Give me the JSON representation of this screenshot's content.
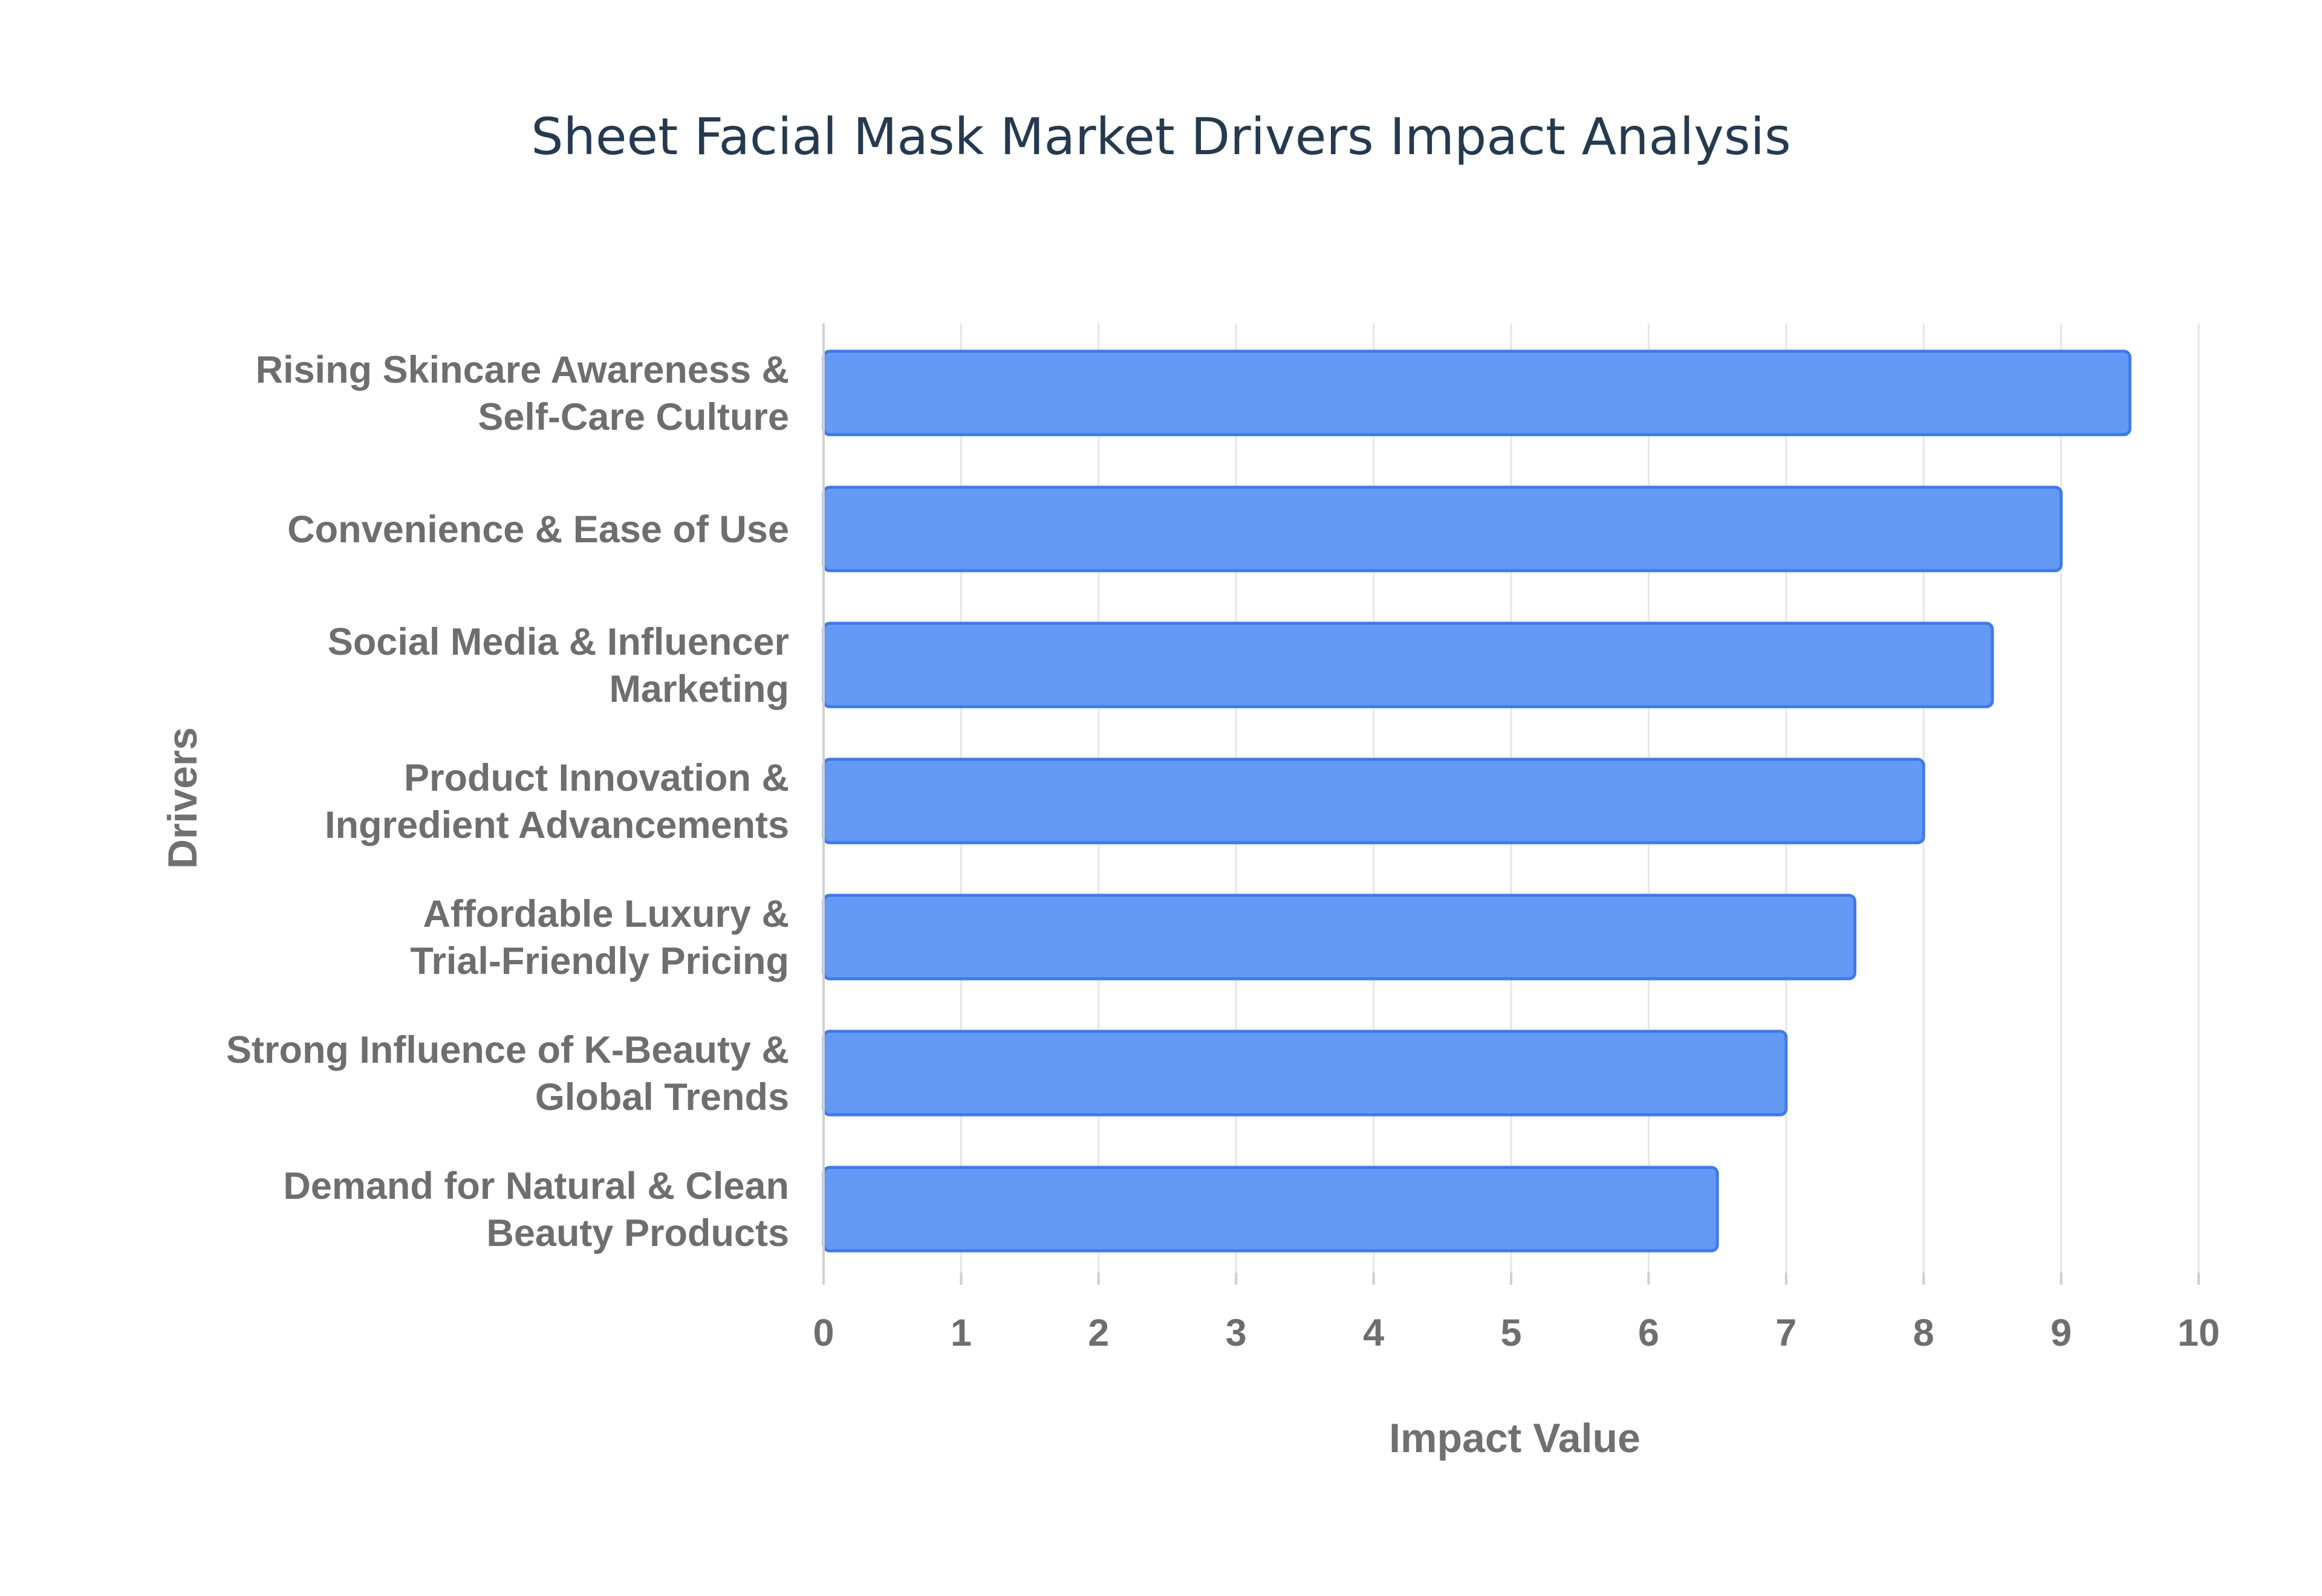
{
  "chart_data": {
    "type": "bar",
    "orientation": "horizontal",
    "title": "Sheet Facial Mask Market Drivers Impact Analysis",
    "xlabel": "Impact Value",
    "ylabel": "Drivers",
    "xlim": [
      0,
      10
    ],
    "x_ticks": [
      "0",
      "1",
      "2",
      "3",
      "4",
      "5",
      "6",
      "7",
      "8",
      "9",
      "10"
    ],
    "categories": [
      "Rising Skincare Awareness & Self-Care Culture",
      "Convenience & Ease of Use",
      "Social Media & Influencer Marketing",
      "Product Innovation & Ingredient Advancements",
      "Affordable Luxury & Trial-Friendly Pricing",
      "Strong Influence of K-Beauty & Global Trends",
      "Demand for Natural & Clean Beauty Products"
    ],
    "category_label_lines": [
      [
        "Rising Skincare Awareness &",
        "Self-Care Culture"
      ],
      [
        "Convenience & Ease of Use"
      ],
      [
        "Social Media & Influencer",
        "Marketing"
      ],
      [
        "Product Innovation &",
        "Ingredient Advancements"
      ],
      [
        "Affordable Luxury &",
        "Trial-Friendly Pricing"
      ],
      [
        "Strong Influence of K-Beauty &",
        "Global Trends"
      ],
      [
        "Demand for Natural & Clean",
        "Beauty Products"
      ]
    ],
    "values": [
      9.5,
      9.0,
      8.5,
      8.0,
      7.5,
      7.0,
      6.5
    ],
    "grid": true,
    "legend": "none",
    "colors": {
      "bar_fill": "#6499f5",
      "bar_stroke": "#3f7ae6"
    }
  }
}
